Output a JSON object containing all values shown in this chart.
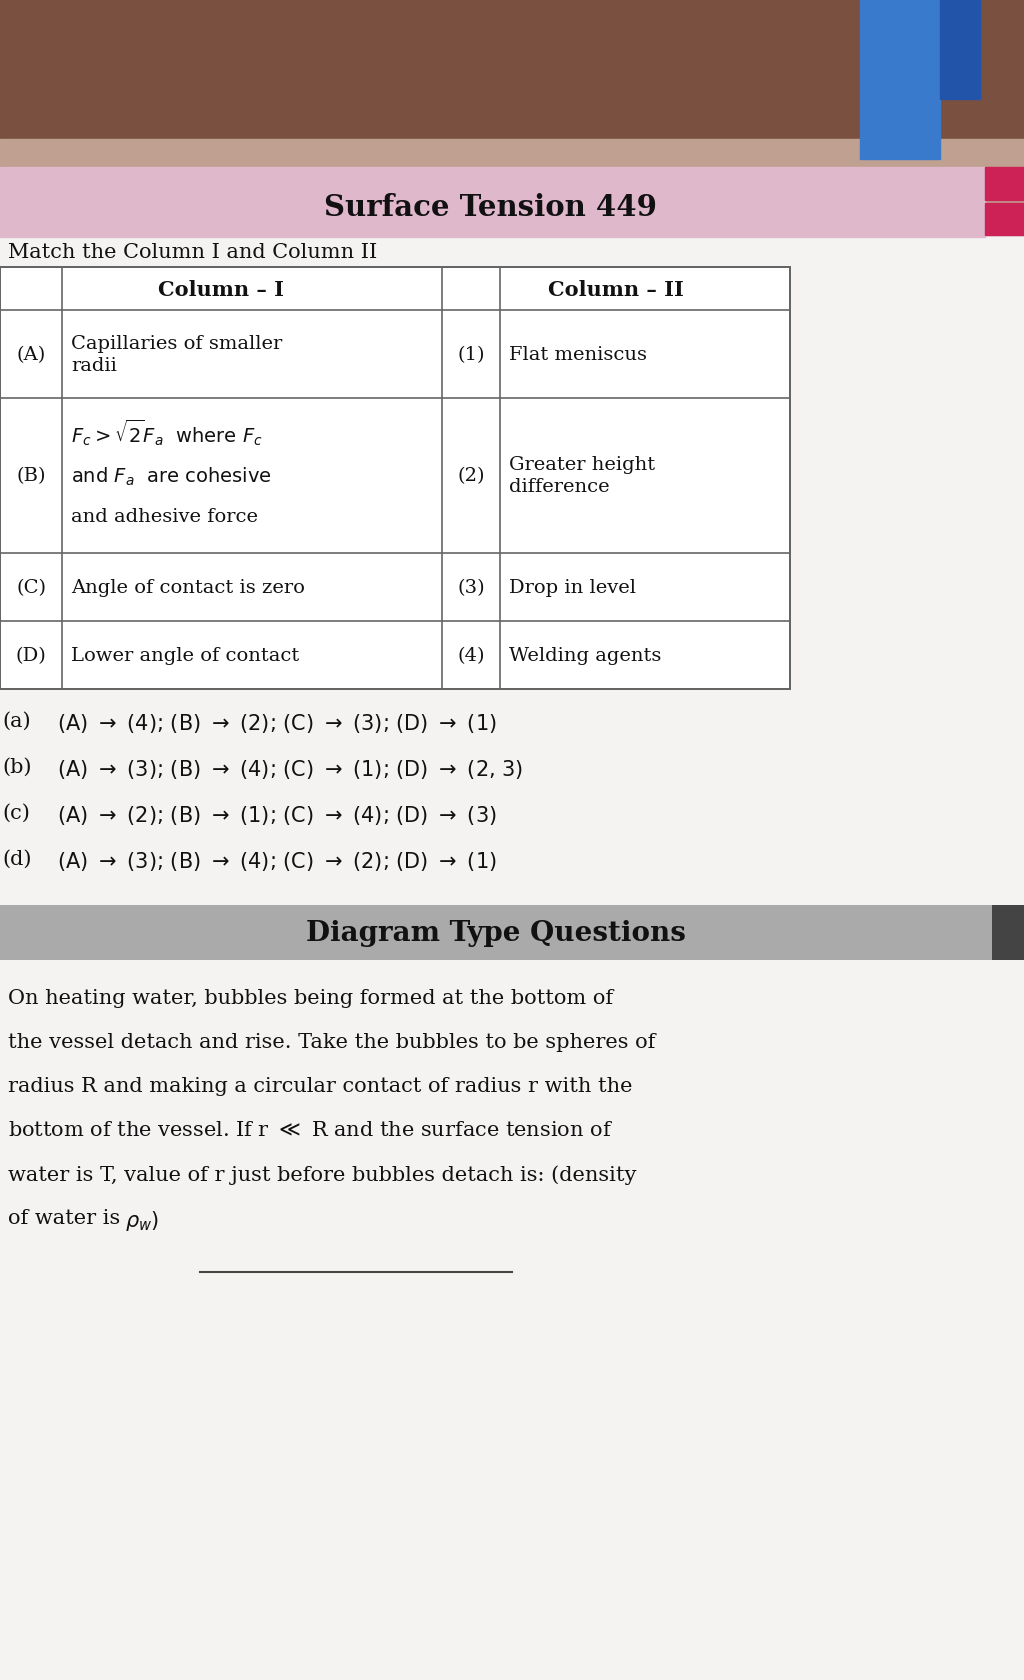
{
  "title": "Surface Tension 449",
  "subtitle": "Match the Column I and Column II",
  "col1_header": "Column – I",
  "col2_header": "Column – II",
  "rows": [
    {
      "label_left": "(A)",
      "text_left": "Capillaries of smaller\nradii",
      "label_right": "(1)",
      "text_right": "Flat meniscus"
    },
    {
      "label_left": "(B)",
      "text_left_math": true,
      "label_right": "(2)",
      "text_right": "Greater height\ndifference"
    },
    {
      "label_left": "(C)",
      "text_left": "Angle of contact is zero",
      "label_right": "(3)",
      "text_right": "Drop in level"
    },
    {
      "label_left": "(D)",
      "text_left": "Lower angle of contact",
      "label_right": "(4)",
      "text_right": "Welding agents"
    }
  ],
  "options": [
    "(a)  (A) → (4); (B) → (2); (C) → (3); (D) → (1)",
    "(b)  (A) → (3); (B) → (4); (C) → (1); (D) → (2, 3)",
    "(c)  (A) → (2); (B) → (1); (C) → (4); (D) → (3)",
    "(d)  (A) → (3); (B) → (4); (C) → (2); (D) → (1)"
  ],
  "section_header": "Diagram Type Questions",
  "para_lines": [
    "On heating water, bubbles being formed at the bottom of",
    "the vessel detach and rise. Take the bubbles to be spheres of",
    "radius R and making a circular contact of radius r with the",
    "bottom of the vessel. If r << R and the surface tension of",
    "water is T, value of r just before bubbles detach is: (density",
    "of water is ρᵤ)"
  ],
  "bg_color": "#e8e0e0",
  "paper_color": "#f5f2f2",
  "header_bg": "#e0b8cc",
  "section_bg": "#aaaaaa",
  "dark_sq": "#444444",
  "border_color": "#444444",
  "text_color": "#111111",
  "photo_bg": "#7a5040",
  "blue_pen": "#3a7acc",
  "pink_sq": "#cc2255",
  "table_line": "#666666"
}
